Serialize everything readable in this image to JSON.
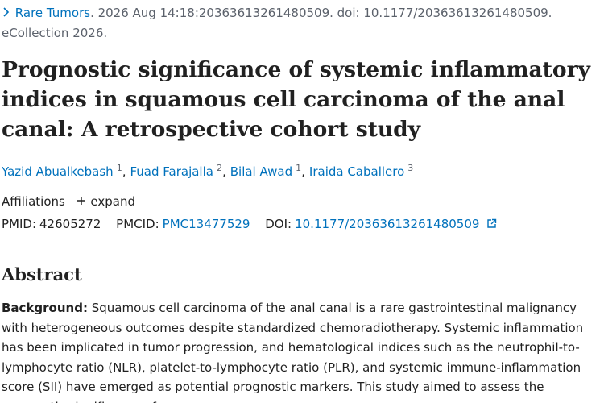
{
  "citation": {
    "journal": "Rare Tumors",
    "details": ". 2026 Aug 14:18:20363613261480509. doi: 10.1177/20363613261480509.",
    "ecollection": "eCollection 2026."
  },
  "title": "Prognostic significance of systemic inflammatory indices in squamous cell carcinoma of the anal canal: A retrospective cohort study",
  "authors": {
    "separator": ",",
    "list": [
      {
        "name": "Yazid Abualkebash",
        "aff": "1"
      },
      {
        "name": "Fuad Farajalla",
        "aff": "2"
      },
      {
        "name": "Bilal Awad",
        "aff": "1"
      },
      {
        "name": "Iraida Caballero",
        "aff": "3"
      }
    ]
  },
  "affiliations": {
    "label": "Affiliations",
    "toggle": "expand"
  },
  "identifiers": {
    "pmid_label": "PMID:",
    "pmid": "42605272",
    "pmcid_label": "PMCID:",
    "pmcid": "PMC13477529",
    "doi_label": "DOI:",
    "doi": "10.1177/20363613261480509"
  },
  "abstract": {
    "heading": "Abstract",
    "label": "Background:",
    "text": "Squamous cell carcinoma of the anal canal is a rare gastrointestinal malignancy with heterogeneous outcomes despite standardized chemoradiotherapy. Systemic inflammation has been implicated in tumor progression, and hematological indices such as the neutrophil-to-lymphocyte ratio (NLR), platelet-to-lymphocyte ratio (PLR), and systemic immune-inflammation score (SII) have emerged as potential prognostic markers. This study aimed to assess the prognostic significance of"
  }
}
